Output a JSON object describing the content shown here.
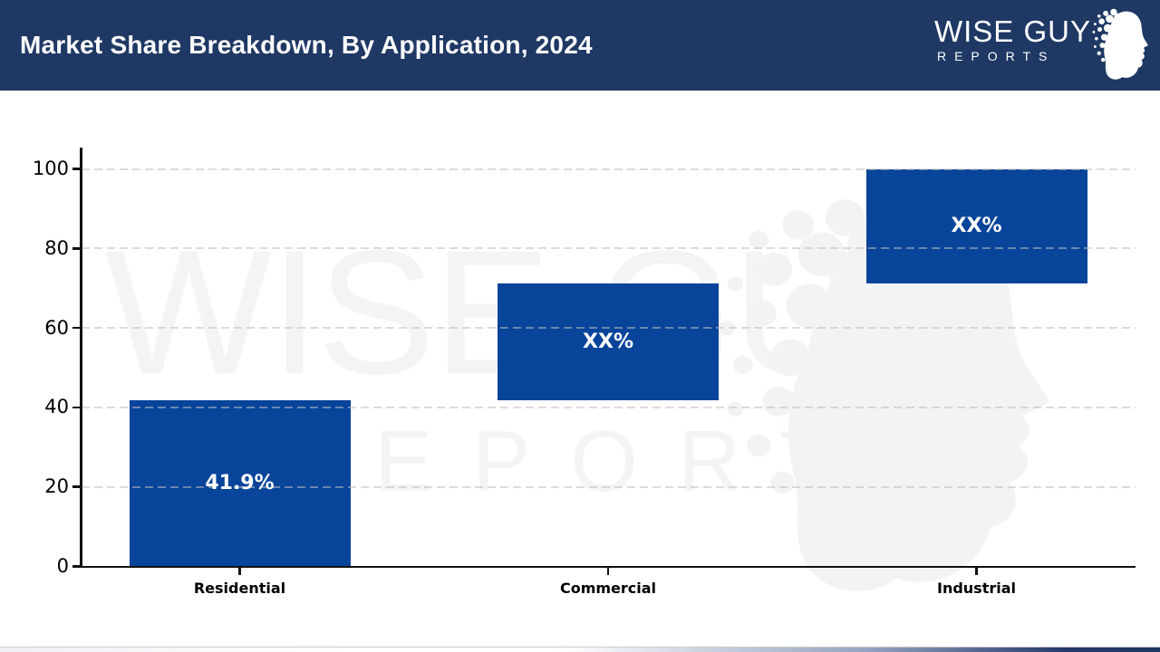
{
  "header": {
    "title": "Market Share Breakdown, By Application, 2024",
    "brand_line1": "WISE GUY",
    "brand_line2": "REPORTS",
    "bg_color": "#1f3864"
  },
  "watermark": {
    "line1": "WISE GUY",
    "line2": "REPORTS"
  },
  "chart_data": {
    "type": "bar",
    "subtype": "cumulative floating segments (waterfall style, each bar starts where the previous ends)",
    "title": "Market Share Breakdown, By Application, 2024",
    "categories": [
      "Residential",
      "Commercial",
      "Industrial"
    ],
    "series": [
      {
        "name": "Residential",
        "start": 0,
        "end": 41.9,
        "value_label": "41.9%"
      },
      {
        "name": "Commercial",
        "start": 41.9,
        "end": 71.2,
        "value_label": "XX%"
      },
      {
        "name": "Industrial",
        "start": 71.2,
        "end": 100,
        "value_label": "XX%"
      }
    ],
    "ylim": [
      0,
      100
    ],
    "yticks": [
      0,
      20,
      40,
      60,
      80,
      100
    ],
    "grid": "horizontal dashed, drawn over bars",
    "legend": "none",
    "bar_color": "#07449a",
    "value_label_color": "#ffffff",
    "gridline_color": "#d9d9d9",
    "axis_color": "#111111"
  },
  "footer": {
    "strip_colors": [
      "#ffffff",
      "#1f3864"
    ]
  }
}
